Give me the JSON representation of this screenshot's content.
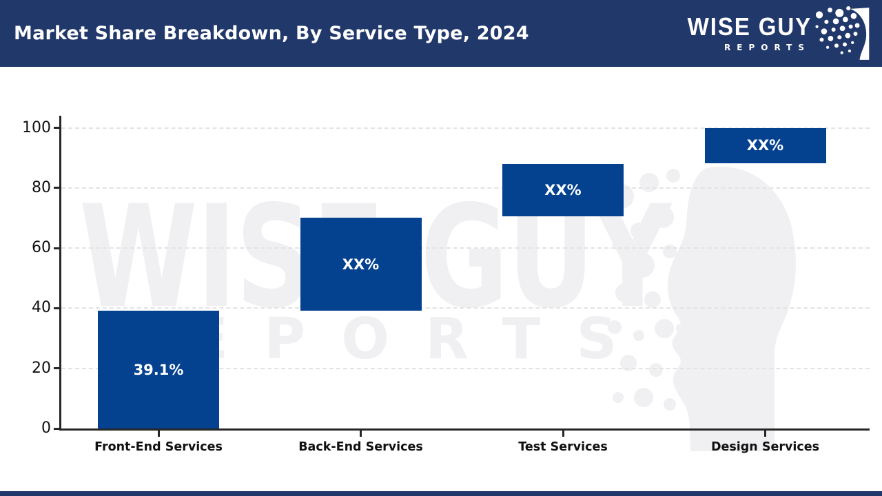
{
  "header": {
    "title": "Market Share Breakdown, By Service Type, 2024",
    "logo": {
      "line1": "WISE GUY",
      "line2": "REPORTS"
    }
  },
  "watermark": {
    "line1": "WISE GUY",
    "line2": "REPORTS"
  },
  "chart_data": {
    "type": "bar",
    "subtype": "waterfall",
    "title": "Market Share Breakdown, By Service Type, 2024",
    "categories": [
      "Front-End Services",
      "Back-End Services",
      "Test Services",
      "Design Services"
    ],
    "bars": [
      {
        "category": "Front-End Services",
        "start": 0,
        "end": 39.1,
        "label": "39.1%"
      },
      {
        "category": "Back-End Services",
        "start": 39.1,
        "end": 70,
        "label": "XX%"
      },
      {
        "category": "Test Services",
        "start": 70.5,
        "end": 88,
        "label": "XX%"
      },
      {
        "category": "Design Services",
        "start": 88.3,
        "end": 100,
        "label": "XX%"
      }
    ],
    "xlabel": "",
    "ylabel": "",
    "ylim": [
      0,
      100
    ],
    "yticks": [
      0,
      20,
      40,
      60,
      80,
      100
    ],
    "grid": "dashed-horizontal",
    "legend": null,
    "bar_color": "#04418f",
    "bar_label_color": "#ffffff"
  },
  "colors": {
    "header_bg": "#21386b",
    "footer_bg": "#21386b",
    "bar": "#04418f",
    "grid": "#e3e3e3",
    "axis": "#262626",
    "text": "#111111",
    "watermark": "#f0f0f3"
  }
}
